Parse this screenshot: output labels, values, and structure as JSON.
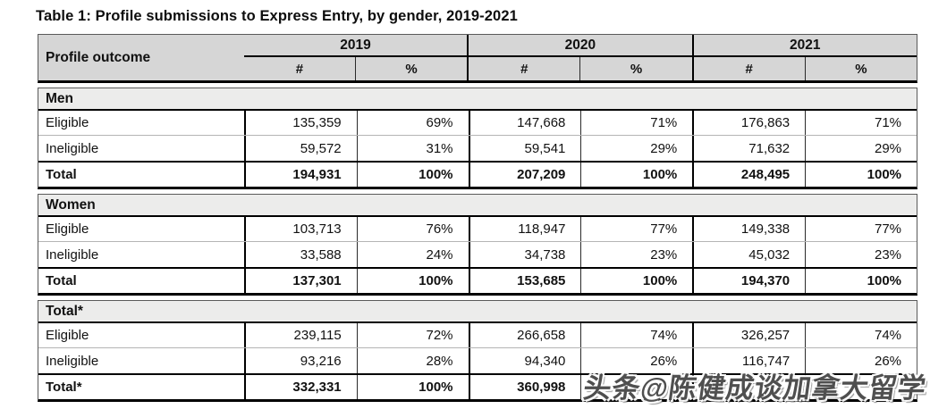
{
  "title": "Table 1: Profile submissions to Express Entry, by gender, 2019-2021",
  "table": {
    "corner_header": "Profile outcome",
    "years": [
      "2019",
      "2020",
      "2021"
    ],
    "sub_headers": [
      "#",
      "%"
    ],
    "sections": [
      {
        "label": "Men",
        "rows": [
          {
            "label": "Eligible",
            "values": [
              "135,359",
              "69%",
              "147,668",
              "71%",
              "176,863",
              "71%"
            ]
          },
          {
            "label": "Ineligible",
            "values": [
              "59,572",
              "31%",
              "59,541",
              "29%",
              "71,632",
              "29%"
            ]
          },
          {
            "label": "Total",
            "values": [
              "194,931",
              "100%",
              "207,209",
              "100%",
              "248,495",
              "100%"
            ]
          }
        ]
      },
      {
        "label": "Women",
        "rows": [
          {
            "label": "Eligible",
            "values": [
              "103,713",
              "76%",
              "118,947",
              "77%",
              "149,338",
              "77%"
            ]
          },
          {
            "label": "Ineligible",
            "values": [
              "33,588",
              "24%",
              "34,738",
              "23%",
              "45,032",
              "23%"
            ]
          },
          {
            "label": "Total",
            "values": [
              "137,301",
              "100%",
              "153,685",
              "100%",
              "194,370",
              "100%"
            ]
          }
        ]
      },
      {
        "label": "Total*",
        "rows": [
          {
            "label": "Eligible",
            "values": [
              "239,115",
              "72%",
              "266,658",
              "74%",
              "326,257",
              "74%"
            ]
          },
          {
            "label": "Ineligible",
            "values": [
              "93,216",
              "28%",
              "94,340",
              "26%",
              "116,747",
              "26%"
            ]
          },
          {
            "label": "Total*",
            "values": [
              "332,331",
              "100%",
              "360,998",
              "",
              "",
              ""
            ]
          }
        ]
      }
    ]
  },
  "watermark": {
    "text": "头条@陈健成谈加拿大留学"
  },
  "colors": {
    "header_bg": "#d6d6d6",
    "section_band_bg": "#ececeb",
    "thick_border": "#000000",
    "watermark_color": "#4f4f4f"
  }
}
